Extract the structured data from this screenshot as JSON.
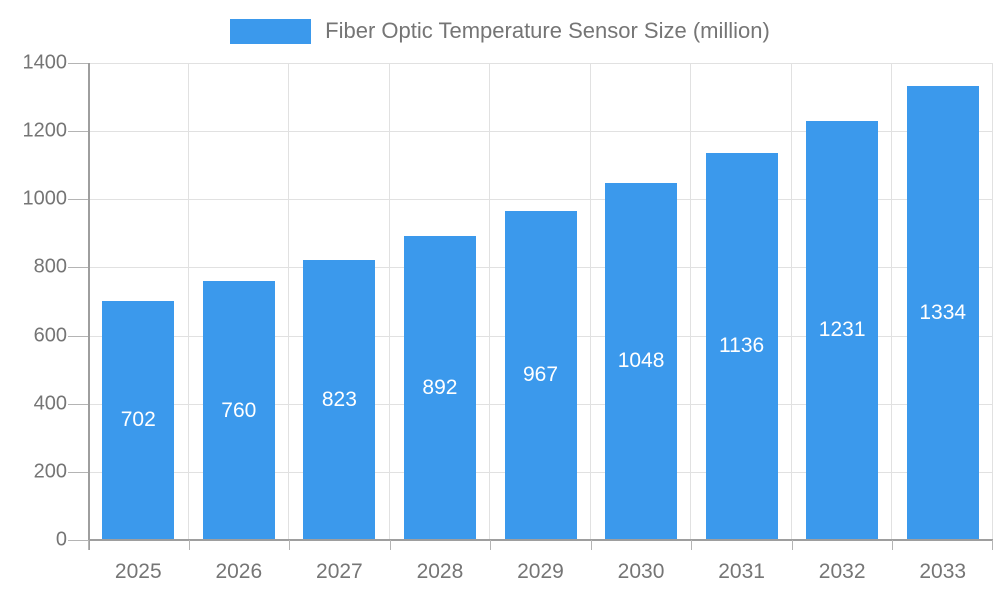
{
  "legend": {
    "label": "Fiber Optic Temperature Sensor Size (million)"
  },
  "chart_data": {
    "type": "bar",
    "title": "Fiber Optic Temperature Sensor Size (million)",
    "categories": [
      "2025",
      "2026",
      "2027",
      "2028",
      "2029",
      "2030",
      "2031",
      "2032",
      "2033"
    ],
    "values": [
      702,
      760,
      823,
      892,
      967,
      1048,
      1136,
      1231,
      1334
    ],
    "xlabel": "",
    "ylabel": "",
    "ylim": [
      0,
      1400
    ],
    "yticks": [
      0,
      200,
      400,
      600,
      800,
      1000,
      1200,
      1400
    ],
    "grid": true,
    "legend_position": "top",
    "colors": {
      "bar": "#3b99ec",
      "bar_label": "#ffffff",
      "axis_text": "#757575",
      "gridline": "#e1e1e1",
      "axis_line": "#9e9e9e"
    }
  }
}
